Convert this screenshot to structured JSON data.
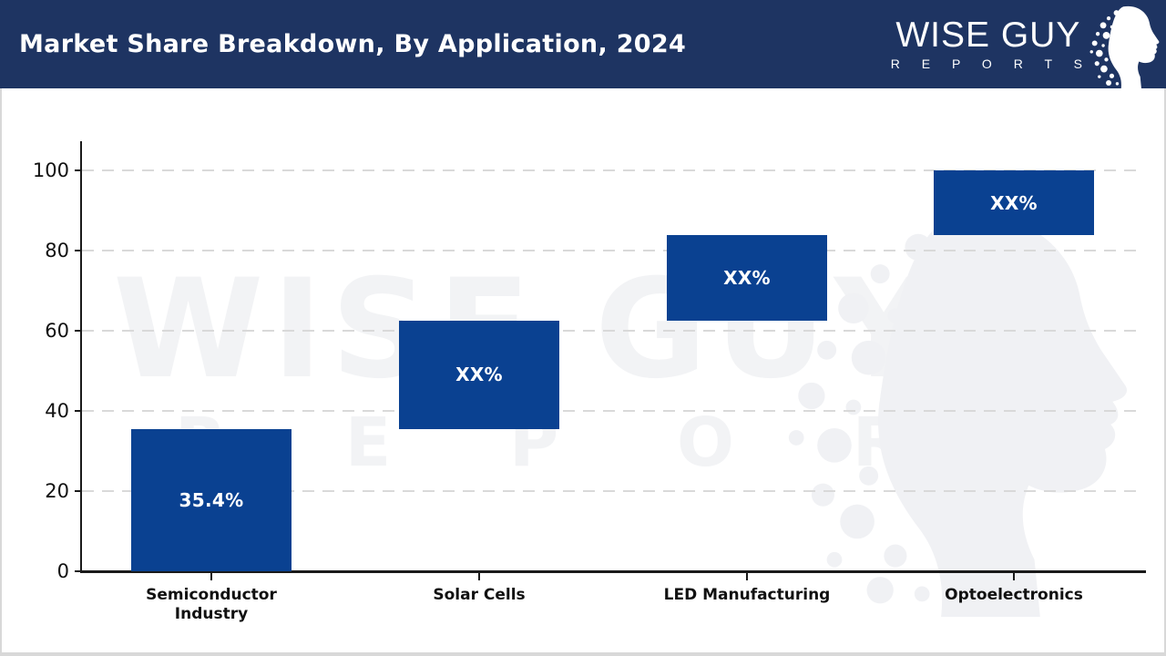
{
  "header": {
    "title": "Market Share Breakdown, By Application, 2024",
    "logo": {
      "line1": "WISE GUY",
      "line2": "R E P O R T S"
    }
  },
  "watermark": {
    "line1": "WISE GUY",
    "line2": "R E P O R T S"
  },
  "chart_data": {
    "type": "bar",
    "subtype": "waterfall",
    "title": "Market Share Breakdown, By Application, 2024",
    "categories": [
      "Semiconductor Industry",
      "Solar Cells",
      "LED Manufacturing",
      "Optoelectronics"
    ],
    "category_label_lines": [
      [
        "Semiconductor",
        "Industry"
      ],
      [
        "Solar Cells"
      ],
      [
        "LED Manufacturing"
      ],
      [
        "Optoelectronics"
      ]
    ],
    "segments": [
      {
        "category": "Semiconductor Industry",
        "start": 0,
        "end": 35.4,
        "label": "35.4%"
      },
      {
        "category": "Solar Cells",
        "start": 35.4,
        "end": 62.6,
        "label": "XX%"
      },
      {
        "category": "LED Manufacturing",
        "start": 62.6,
        "end": 83.8,
        "label": "XX%"
      },
      {
        "category": "Optoelectronics",
        "start": 83.8,
        "end": 100,
        "label": "XX%"
      }
    ],
    "ylim": [
      0,
      100
    ],
    "yticks": [
      0,
      20,
      40,
      60,
      80,
      100
    ],
    "grid": "horizontal-dashed",
    "legend": "none",
    "bar_color": "#0a4191",
    "bar_label_color": "#ffffff"
  },
  "colors": {
    "header_bg": "#1e3462",
    "bar": "#0a4191",
    "gridline": "#d9d9d9",
    "axis": "#1a1a1a",
    "text": "#111111",
    "watermark": "#f2f3f5",
    "page_border": "#d8d8d8"
  }
}
